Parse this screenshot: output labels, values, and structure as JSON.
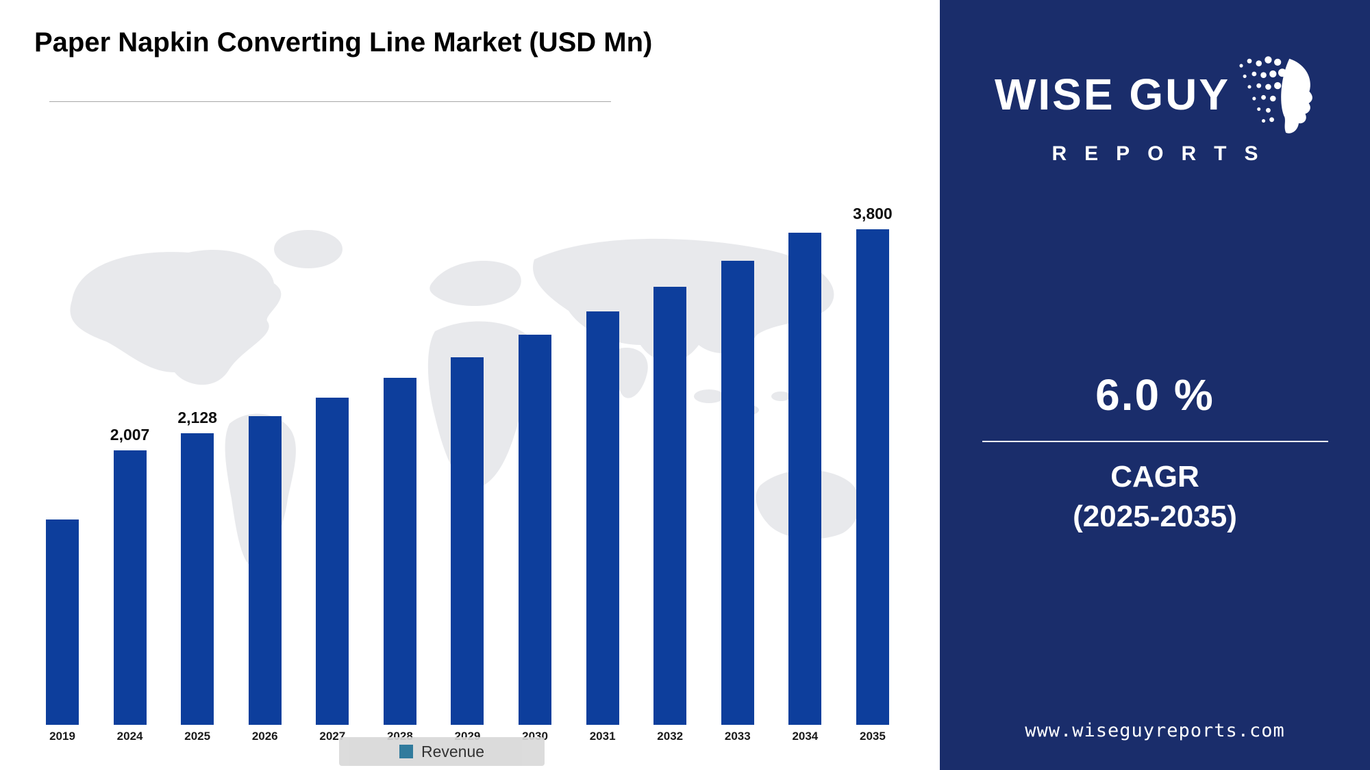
{
  "page": {
    "title": "Paper Napkin Converting Line Market (USD Mn)"
  },
  "chart_data": {
    "type": "bar",
    "title": "Paper Napkin Converting Line Market (USD Mn)",
    "categories": [
      "2019",
      "2024",
      "2025",
      "2026",
      "2027",
      "2028",
      "2029",
      "2030",
      "2031",
      "2032",
      "2033",
      "2034",
      "2035"
    ],
    "values": [
      1500,
      2007,
      2128,
      2256,
      2391,
      2535,
      2687,
      2848,
      3019,
      3200,
      3392,
      3596,
      3800
    ],
    "value_labels": [
      "",
      "2,007",
      "2,128",
      "",
      "",
      "",
      "",
      "",
      "",
      "",
      "",
      "",
      "3,800"
    ],
    "ylim": [
      0,
      3800
    ],
    "xlabel": "",
    "ylabel": "",
    "grid": false,
    "legend_position": "bottom",
    "legend": [
      {
        "label": "Revenue",
        "color": "#1b6d93"
      }
    ],
    "bar_color": "#0d3e9c"
  },
  "sidebar": {
    "brand_line1": "WISE GUY",
    "brand_line2": "REPORTS",
    "cagr_value": "6.0 %",
    "cagr_label": "CAGR",
    "cagr_range": "(2025-2035)",
    "website": "www.wiseguyreports.com",
    "bg_color": "#1a2d6b"
  }
}
